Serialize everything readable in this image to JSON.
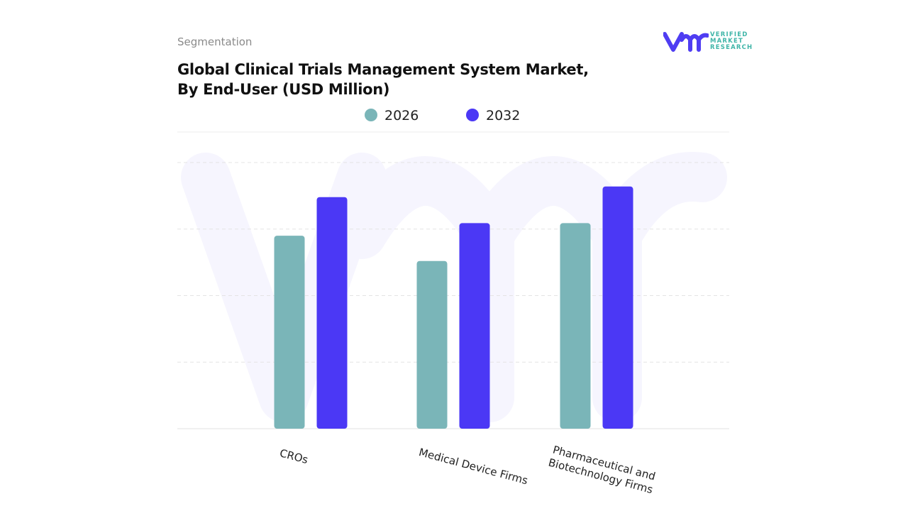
{
  "header": {
    "segment_label": "Segmentation",
    "title_line1": "Global Clinical Trials Management System Market,",
    "title_line2": "By End-User (USD Million)"
  },
  "logo": {
    "mark": "vmr",
    "line1": "VERIFIED",
    "line2": "MARKET",
    "line3": "RESEARCH",
    "color": "#4f3df2",
    "text_color": "#3fb5a8"
  },
  "chart_data": {
    "type": "bar",
    "title": "Global Clinical Trials Management System Market, By End-User (USD Million)",
    "categories": [
      "CROs",
      "Medical Device Firms",
      "Pharmaceutical and Biotechnology Firms"
    ],
    "series": [
      {
        "name": "2026",
        "color": "#7ab5b8",
        "values": [
          2.9,
          2.52,
          3.09
        ]
      },
      {
        "name": "2032",
        "color": "#4b38f5",
        "values": [
          3.48,
          3.09,
          3.64
        ]
      }
    ],
    "ylim": [
      0,
      4
    ],
    "grid": true,
    "y_tick_labels_shown": false,
    "legend_position": "top-center",
    "xlabel": "",
    "ylabel": ""
  }
}
